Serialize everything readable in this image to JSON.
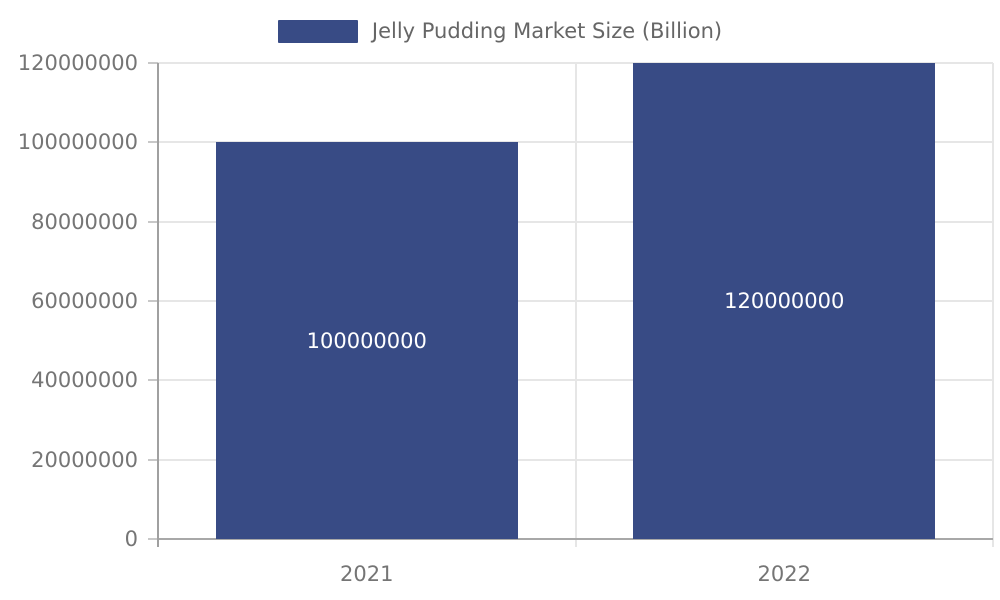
{
  "legend": {
    "label": "Jelly Pudding Market Size (Billion)"
  },
  "chart_data": {
    "type": "bar",
    "categories": [
      "2021",
      "2022"
    ],
    "values": [
      100000000,
      120000000
    ],
    "value_labels": [
      "100000000",
      "120000000"
    ],
    "title": "Jelly Pudding Market Size (Billion)",
    "xlabel": "",
    "ylabel": "",
    "ylim": [
      0,
      120000000
    ],
    "yticks": [
      0,
      20000000,
      40000000,
      60000000,
      80000000,
      100000000,
      120000000
    ],
    "grid": true,
    "legend_position": "top"
  },
  "colors": {
    "bar": "#384B85",
    "grid": "#e6e6e6",
    "axis_y": "#a0a0a0",
    "axis_x": "#a8a8a8",
    "tick": "#c8c8c8",
    "tick_label_text": "#757575",
    "legend_text": "#666666",
    "value_label_text": "#ffffff"
  }
}
